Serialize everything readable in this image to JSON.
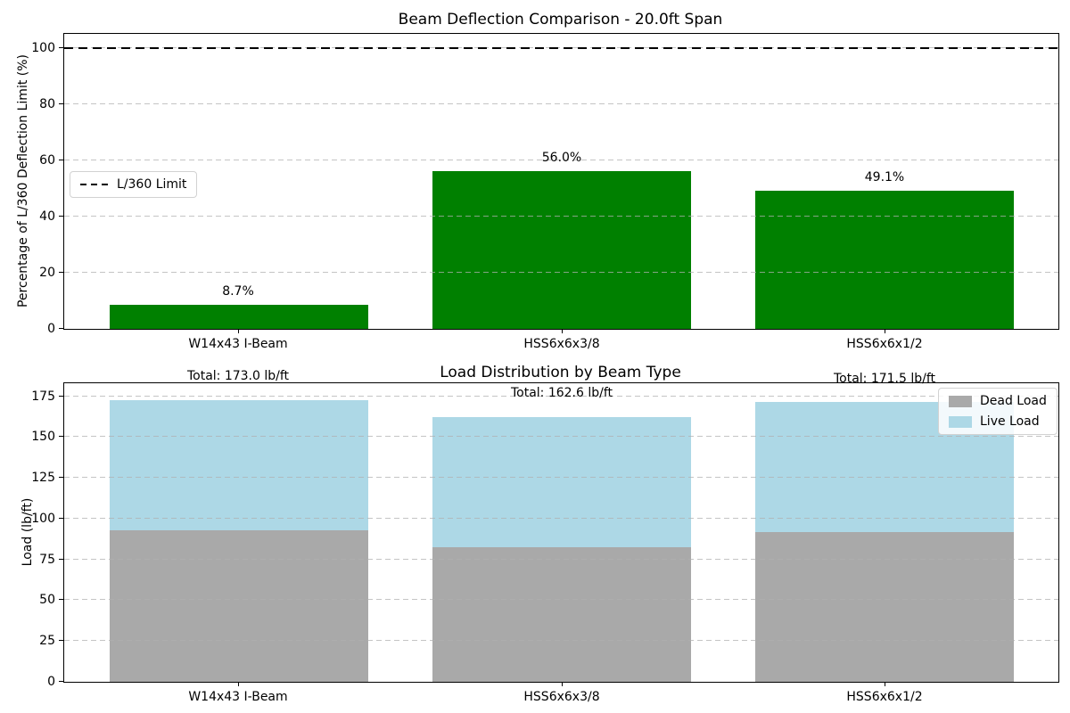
{
  "chart_data": [
    {
      "type": "bar",
      "title": "Beam Deflection Comparison - 20.0ft Span",
      "ylabel": "Percentage of L/360 Deflection Limit (%)",
      "xlabel": "",
      "categories": [
        "W14x43 I-Beam",
        "HSS6x6x3/8",
        "HSS6x6x1/2"
      ],
      "values": [
        8.7,
        56.0,
        49.1
      ],
      "bar_labels": [
        "8.7%",
        "56.0%",
        "49.1%"
      ],
      "bar_color": "#008000",
      "ylim": [
        0,
        105
      ],
      "yticks": [
        0,
        20,
        40,
        60,
        80,
        100
      ],
      "grid": true,
      "limit_line": {
        "value": 100,
        "label": "L/360 Limit",
        "color": "#000000",
        "style": "dashed"
      },
      "legend_position": "center-left"
    },
    {
      "type": "bar-stacked",
      "title": "Load Distribution by Beam Type",
      "ylabel": "Load (lb/ft)",
      "xlabel": "",
      "categories": [
        "W14x43 I-Beam",
        "HSS6x6x3/8",
        "HSS6x6x1/2"
      ],
      "series": [
        {
          "name": "Dead Load",
          "color": "#a9a9a9",
          "values": [
            93.0,
            82.6,
            91.5
          ]
        },
        {
          "name": "Live Load",
          "color": "#add8e6",
          "values": [
            80.0,
            80.0,
            80.0
          ]
        }
      ],
      "totals": [
        173.0,
        162.6,
        171.5
      ],
      "total_labels": [
        "Total: 173.0 lb/ft",
        "Total: 162.6 lb/ft",
        "Total: 171.5 lb/ft"
      ],
      "ylim": [
        0,
        183
      ],
      "yticks": [
        0,
        25,
        50,
        75,
        100,
        125,
        150,
        175
      ],
      "grid": true,
      "legend_position": "upper-right"
    }
  ]
}
